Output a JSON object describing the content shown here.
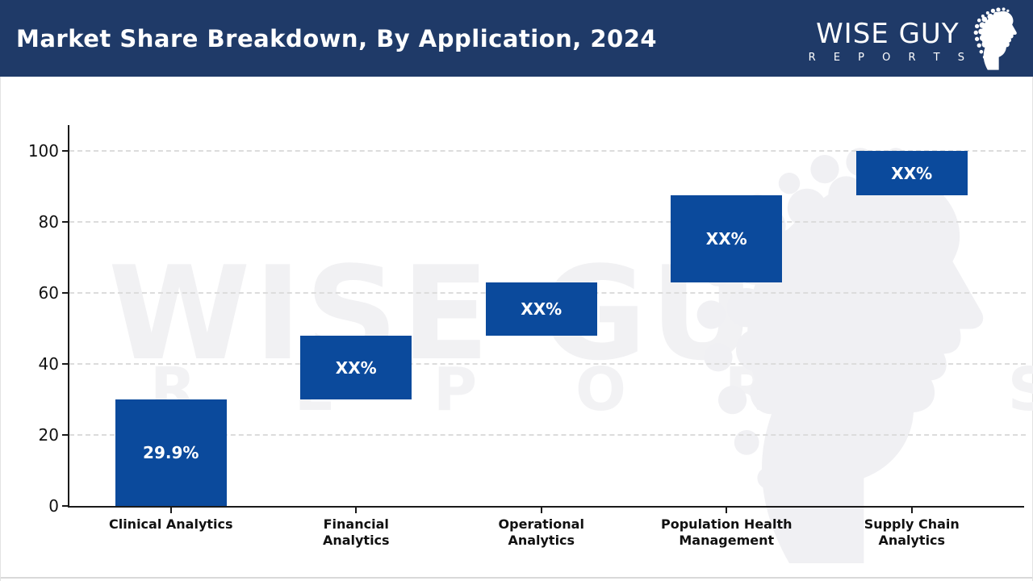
{
  "header": {
    "title": "Market Share Breakdown, By Application, 2024",
    "bg_color": "#1F3A68",
    "logo": {
      "line1": "WISE GUY",
      "line2": "R E P O R T S"
    }
  },
  "watermark": {
    "line1": "WISE GUY",
    "line2": "R E P O R T S"
  },
  "chart_data": {
    "type": "bar",
    "subtype": "waterfall",
    "title": "Market Share Breakdown, By Application, 2024",
    "categories": [
      "Clinical Analytics",
      "Financial Analytics",
      "Operational Analytics",
      "Population Health Management",
      "Supply Chain Analytics"
    ],
    "categories_lines": [
      [
        "Clinical Analytics"
      ],
      [
        "Financial",
        "Analytics"
      ],
      [
        "Operational",
        "Analytics"
      ],
      [
        "Population Health",
        "Management"
      ],
      [
        "Supply Chain",
        "Analytics"
      ]
    ],
    "bars": [
      {
        "category": "Clinical Analytics",
        "label": "29.9%",
        "start": 0,
        "end": 29.9
      },
      {
        "category": "Financial Analytics",
        "label": "XX%",
        "start": 29.9,
        "end": 48
      },
      {
        "category": "Operational Analytics",
        "label": "XX%",
        "start": 48,
        "end": 63
      },
      {
        "category": "Population Health Management",
        "label": "XX%",
        "start": 63,
        "end": 87.5
      },
      {
        "category": "Supply Chain Analytics",
        "label": "XX%",
        "start": 87.5,
        "end": 100
      }
    ],
    "ylim": [
      0,
      100
    ],
    "yticks": [
      0,
      20,
      40,
      60,
      80,
      100
    ],
    "xlabel": "",
    "ylabel": "",
    "grid": "horizontal-dashed",
    "legend": "none",
    "bar_color": "#0B4A9C",
    "bar_label_color": "#FFFFFF",
    "axis_color": "#1a1a1a",
    "gridline_color": "#DCDCDC"
  }
}
